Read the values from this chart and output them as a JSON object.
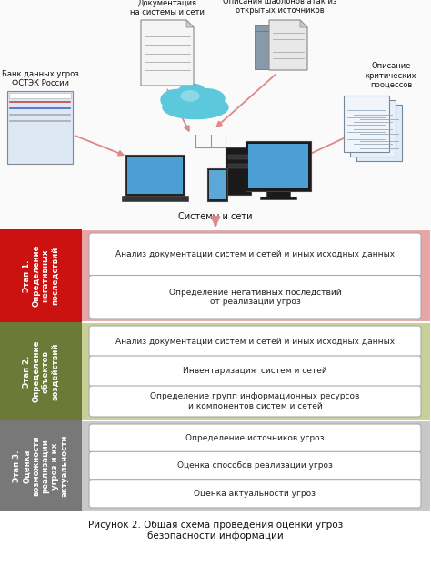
{
  "caption_line1": "Рисунок 2. Общая схема проведения оценки угроз",
  "caption_line2": "безопасности информации",
  "stages": [
    {
      "label": "Этап 1.\nОпределение\nнегативных\nпоследствий",
      "bg_color": "#e8a5a5",
      "label_color": "#cc1111",
      "items": [
        "Анализ документации систем и сетей и иных исходных данных",
        "Определение негативных последствий\nот реализации угроз"
      ]
    },
    {
      "label": "Этап 2.\nОпределение\nобъектов\nвоздействий",
      "bg_color": "#c8d098",
      "label_color": "#6b7a36",
      "items": [
        "Анализ документации систем и сетей и иных исходных данных",
        "Инвентаризация  систем и сетей",
        "Определение групп информационных ресурсов\nи компонентов систем и сетей"
      ]
    },
    {
      "label": "Этап 3.\nОценка\nвозможности\nреализации\nугроз и их\nактуальности",
      "bg_color": "#c8c8c8",
      "label_color": "#787878",
      "items": [
        "Определение источников угроз",
        "Оценка способов реализации угроз",
        "Оценка актуальности угроз"
      ]
    }
  ],
  "background_color": "#ffffff",
  "box_fill": "#ffffff",
  "box_edge": "#aaaaaa",
  "arrow_color": "#e08888"
}
